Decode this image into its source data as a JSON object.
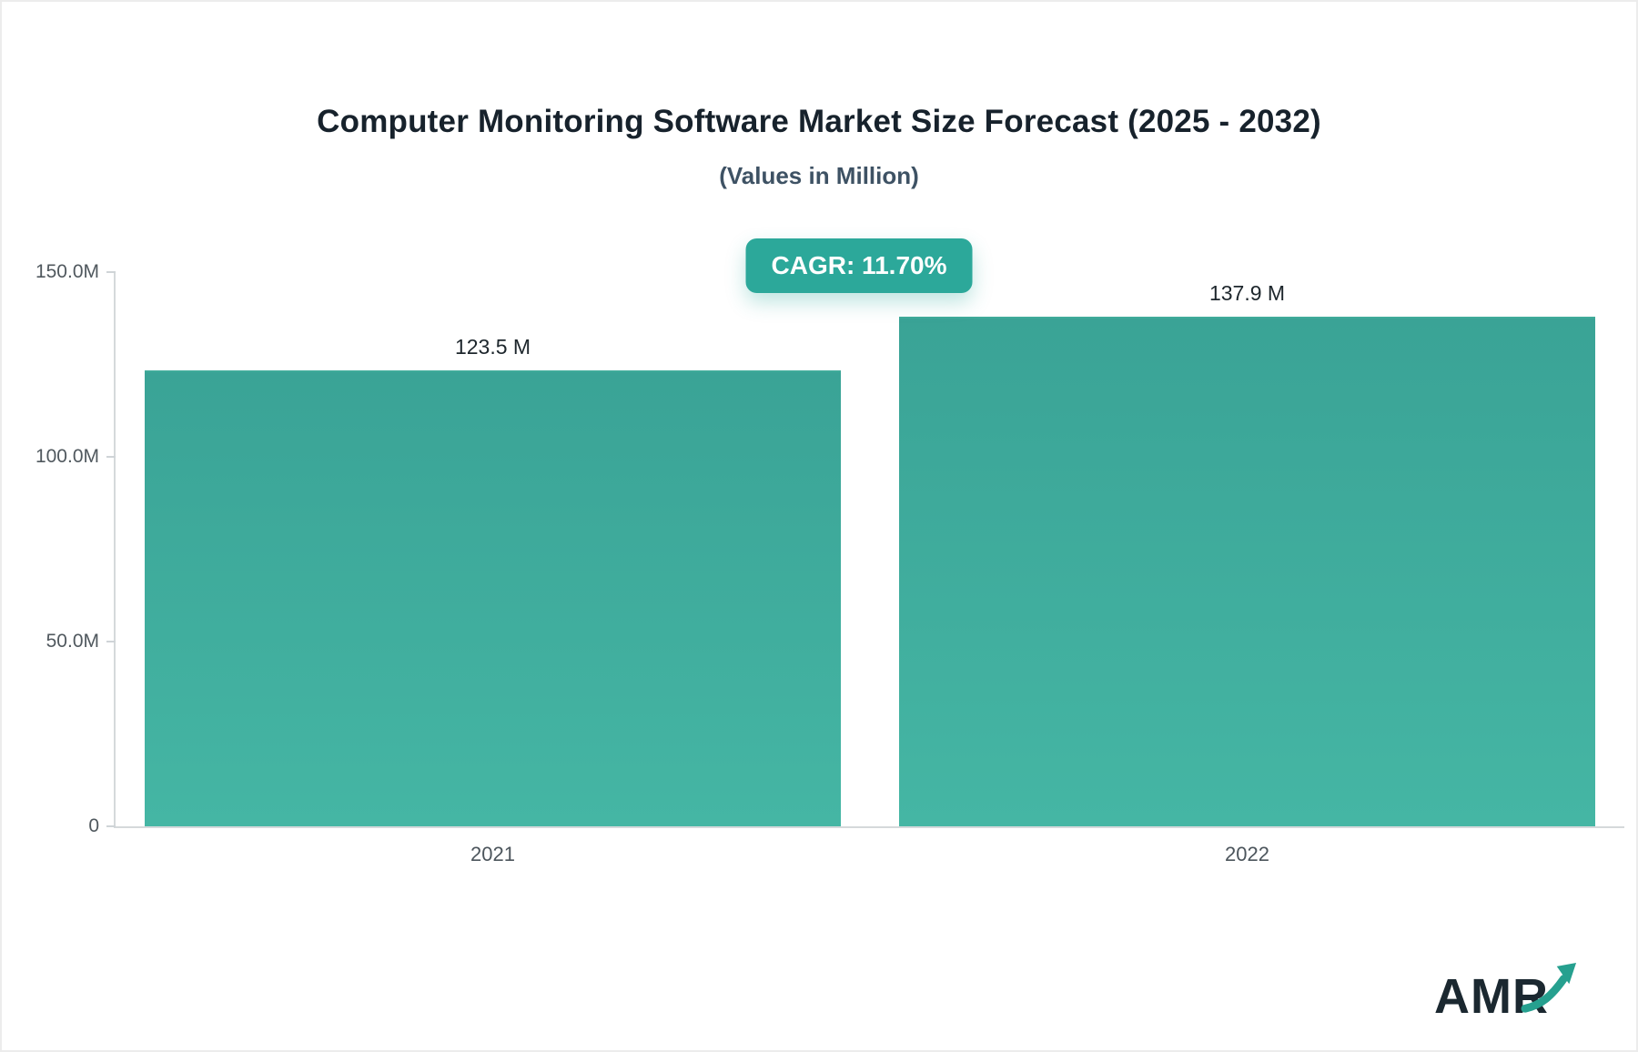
{
  "header": {
    "title": "Computer Monitoring Software Market Size Forecast (2025 - 2032)",
    "subtitle": "(Values in Million)"
  },
  "badge": {
    "label": "CAGR: 11.70%"
  },
  "branding": {
    "logo_text": "AMR"
  },
  "chart_data": {
    "type": "bar",
    "title": "Computer Monitoring Software Market Size Forecast (2025 - 2032)",
    "subtitle": "(Values in Million)",
    "annotation": "CAGR: 11.70%",
    "unit": "Million",
    "categories": [
      "2021",
      "2022"
    ],
    "values": [
      123.5,
      137.9
    ],
    "value_labels": [
      "123.5 M",
      "137.9 M"
    ],
    "ylim": [
      0,
      150
    ],
    "yticks": [
      0,
      50,
      100,
      150
    ],
    "ytick_labels": [
      "0",
      "50.0M",
      "100.0M",
      "150.0M"
    ],
    "grid": false,
    "legend": "none",
    "bar_gradient_top": "#3AA396",
    "bar_gradient_bottom": "#45B6A4",
    "accent_color": "#2CA89A",
    "axis_color": "#d5d9db"
  }
}
